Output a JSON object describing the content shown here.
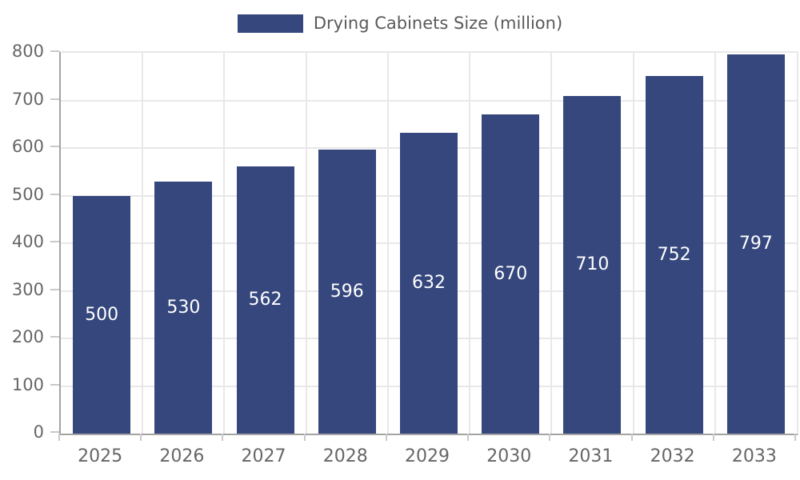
{
  "chart_data": {
    "type": "bar",
    "title": "Drying Cabinets Size (million)",
    "categories": [
      "2025",
      "2026",
      "2027",
      "2028",
      "2029",
      "2030",
      "2031",
      "2032",
      "2033"
    ],
    "series": [
      {
        "name": "Drying Cabinets Size (million)",
        "values": [
          500,
          530,
          562,
          596,
          632,
          670,
          710,
          752,
          797
        ]
      }
    ],
    "xlabel": "",
    "ylabel": "",
    "ylim": [
      0,
      800
    ],
    "yticks": [
      0,
      100,
      200,
      300,
      400,
      500,
      600,
      700,
      800
    ],
    "grid": true,
    "bar_value_labels_shown": true,
    "legend": {
      "position": "top-center",
      "entries": [
        "Drying Cabinets Size (million)"
      ]
    },
    "colors": {
      "bar": "#35477D",
      "bar_label": "#ffffff",
      "axis_line": "#a3a3a3",
      "tick": "#c9c9c9",
      "gridline": "#e8e8e8",
      "axis_text": "#666666",
      "legend_text": "#595959",
      "background": "#ffffff"
    }
  }
}
